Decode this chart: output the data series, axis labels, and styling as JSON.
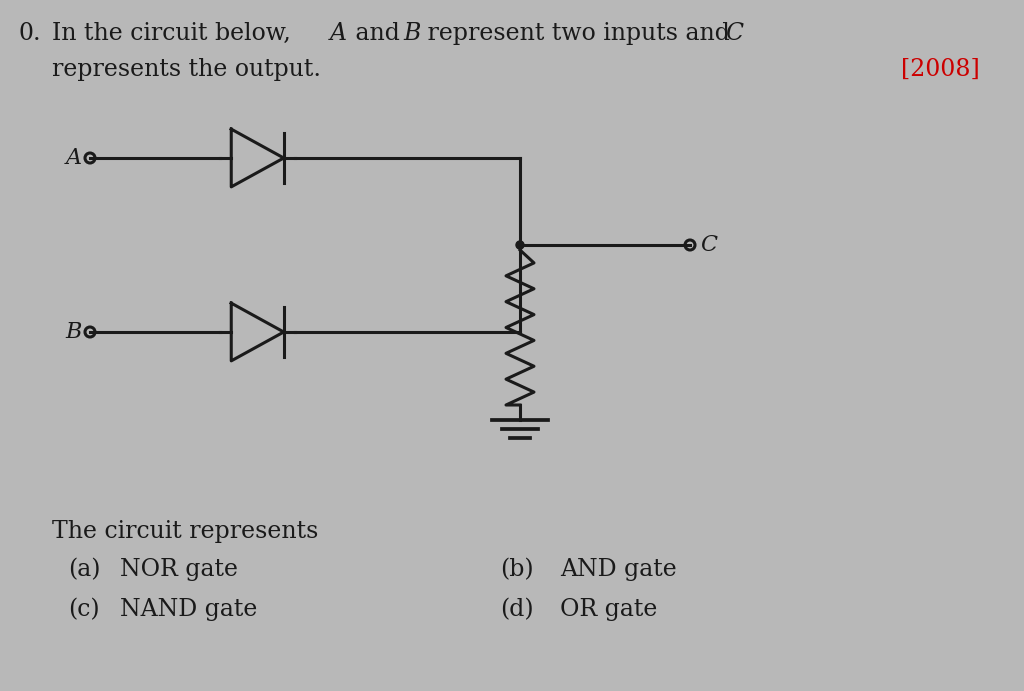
{
  "title_prefix": "0.",
  "title_text": "In the circuit below, ",
  "title_italic_A": "A",
  "title_and": " and ",
  "title_italic_B": "B",
  "title_rest": " represent two inputs and ",
  "title_italic_C": "C",
  "title_newline": "represents the output.",
  "year_tag": "[2008]",
  "question_text": "The circuit represents",
  "options": [
    {
      "label": "(a)",
      "text": "NOR gate"
    },
    {
      "label": "(b)",
      "text": "AND gate"
    },
    {
      "label": "(c)",
      "text": "NAND gate"
    },
    {
      "label": "(d)",
      "text": "OR gate"
    }
  ],
  "bg_color": "#b8b8b8",
  "text_color": "#1a1a1a",
  "year_color": "#cc0000",
  "circuit_color": "#1a1a1a",
  "figsize": [
    10.24,
    6.91
  ],
  "dpi": 100
}
